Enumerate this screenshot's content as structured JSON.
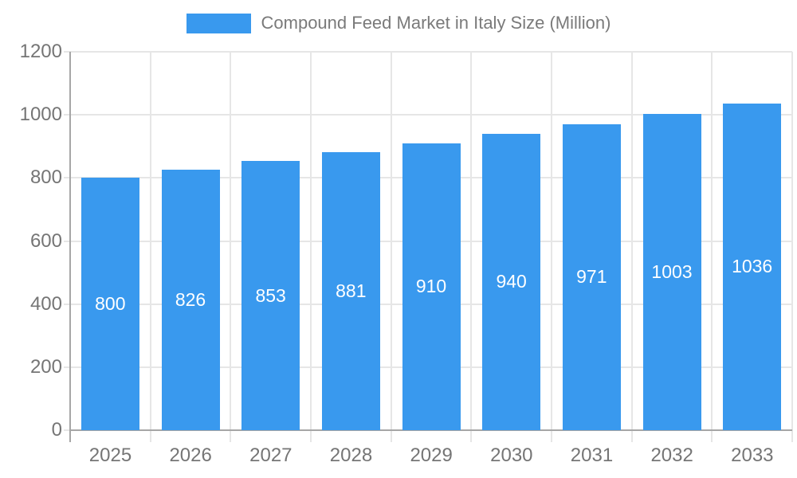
{
  "chart_data": {
    "type": "bar",
    "title": "Compound Feed Market in Italy Size (Million)",
    "legend": {
      "position": "top",
      "entries": [
        "Compound Feed Market in Italy Size (Million)"
      ]
    },
    "categories": [
      "2025",
      "2026",
      "2027",
      "2028",
      "2029",
      "2030",
      "2031",
      "2032",
      "2033"
    ],
    "values": [
      800,
      826,
      853,
      881,
      910,
      940,
      971,
      1003,
      1036
    ],
    "value_labels_shown": true,
    "xlabel": "",
    "ylabel": "",
    "ylim": [
      0,
      1200
    ],
    "yticks": [
      0,
      200,
      400,
      600,
      800,
      1000,
      1200
    ],
    "grid": true
  },
  "colors": {
    "bar": "#3999ee",
    "grid": "#e6e6e6",
    "axis": "#a6a6a6",
    "text": "#757575",
    "value_label": "#ffffff",
    "background": "#ffffff"
  }
}
